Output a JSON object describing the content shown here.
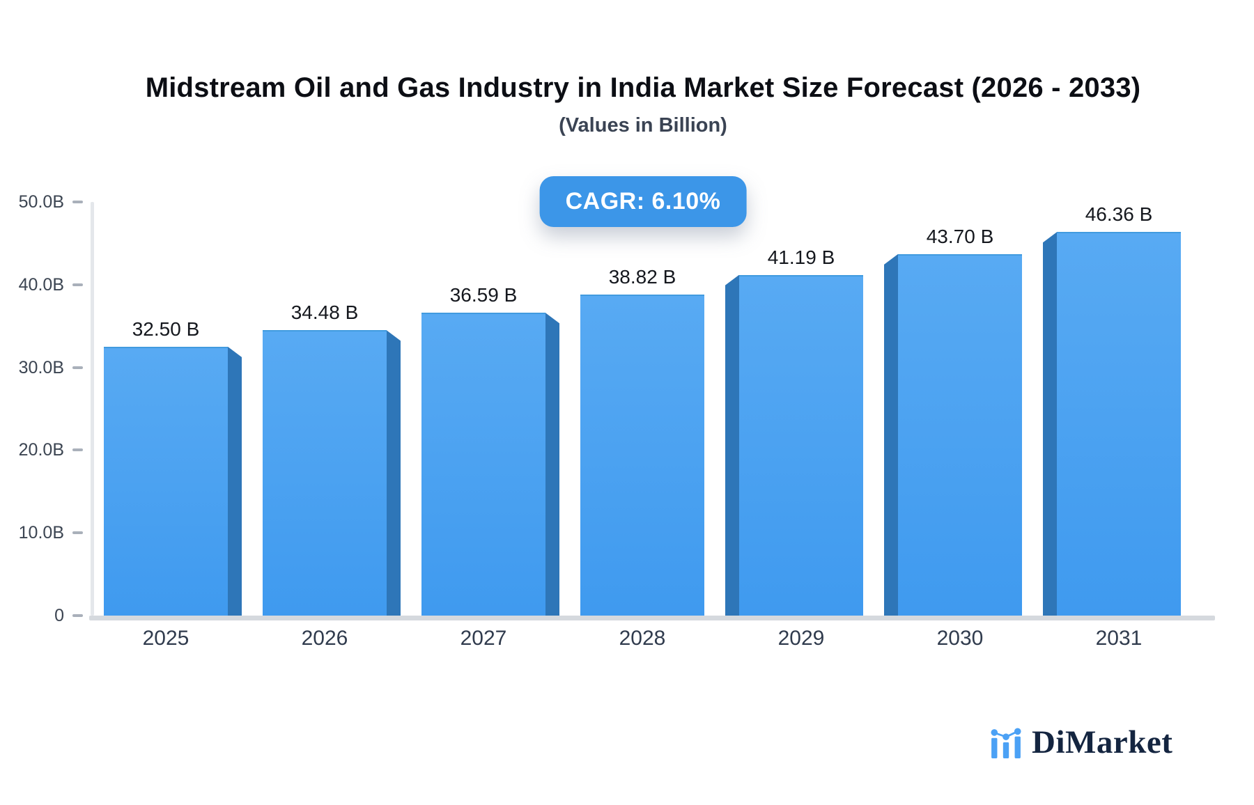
{
  "header": {
    "title": "Midstream Oil and Gas Industry in India Market Size Forecast (2026 - 2033)",
    "subtitle": "(Values in Billion)",
    "badge_label": "CAGR: 6.10%",
    "badge_color": "#3c96e8"
  },
  "chart_data": {
    "type": "bar",
    "categories": [
      "2025",
      "2026",
      "2027",
      "2028",
      "2029",
      "2030",
      "2031"
    ],
    "values": [
      32.5,
      34.48,
      36.59,
      38.82,
      41.19,
      43.7,
      46.36
    ],
    "bar_labels": [
      "32.50 B",
      "34.48 B",
      "36.59 B",
      "38.82 B",
      "41.19 B",
      "43.70 B",
      "46.36 B"
    ],
    "title": "Midstream Oil and Gas Industry in India Market Size Forecast (2026 - 2033)",
    "subtitle": "(Values in Billion)",
    "xlabel": "",
    "ylabel": "",
    "ylim": [
      0,
      50
    ],
    "y_ticks": [
      {
        "value": 50,
        "label": "50.0B"
      },
      {
        "value": 40,
        "label": "40.0B"
      },
      {
        "value": 30,
        "label": "30.0B"
      },
      {
        "value": 20,
        "label": "20.0B"
      },
      {
        "value": 10,
        "label": "10.0B"
      },
      {
        "value": 0,
        "label": "0"
      }
    ],
    "grid": false,
    "legend": "none",
    "style_3d": true,
    "colors": {
      "bar_face_top": "#58aaf3",
      "bar_face_bottom": "#3f9aef",
      "bar_side": "#2e76b8",
      "axis_line": "#e4e7eb",
      "baseline": "#d5d9de"
    }
  },
  "logo": {
    "name": "DiMarket",
    "icon": "bar-line-chart-icon",
    "icon_color": "#4ba1f5",
    "text_color": "#142540"
  }
}
